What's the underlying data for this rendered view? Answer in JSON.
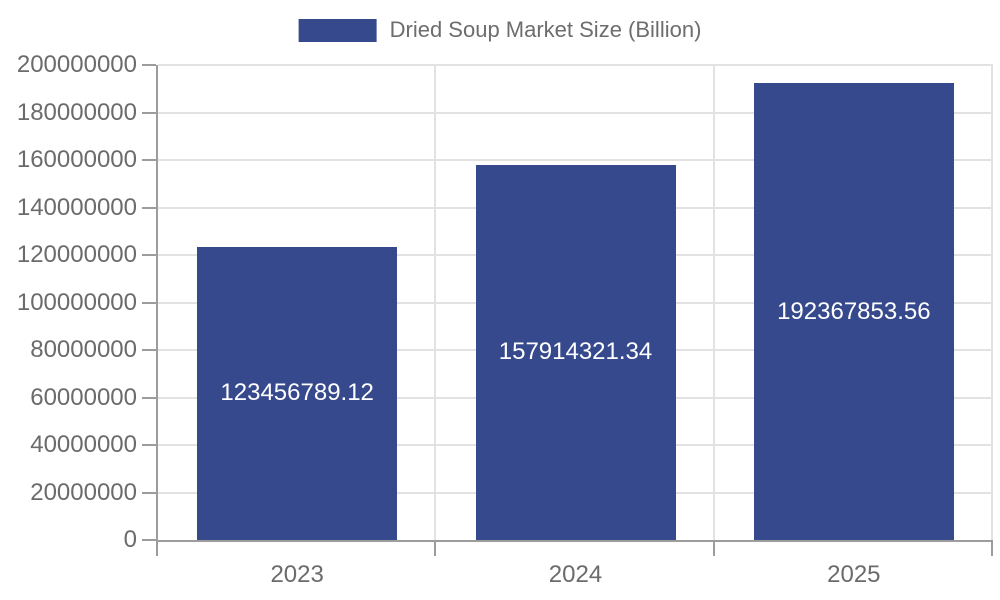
{
  "chart_data": {
    "type": "bar",
    "title": "Dried Soup Market Size (Billion)",
    "categories": [
      "2023",
      "2024",
      "2025"
    ],
    "values": [
      123456789.12,
      157914321.34,
      192367853.56
    ],
    "bar_value_labels": [
      "123456789.12",
      "157914321.34",
      "192367853.56"
    ],
    "xlabel": "",
    "ylabel": "",
    "ylim": [
      0,
      200000000
    ],
    "ytick_step": 20000000,
    "ytick_labels": [
      "0",
      "20000000",
      "40000000",
      "60000000",
      "80000000",
      "100000000",
      "120000000",
      "140000000",
      "160000000",
      "180000000",
      "200000000"
    ],
    "grid": true,
    "legend_position": "top-center",
    "legend_entries": [
      "Dried Soup Market Size (Billion)"
    ],
    "colors": {
      "bar": "#36498C",
      "bar_label_text": "#ffffff",
      "axis_line": "#9c9c9c",
      "gridline": "#e2e2e2",
      "tick_text": "#6b6b6b",
      "legend_text": "#6d6d6d",
      "background": "#ffffff"
    }
  }
}
